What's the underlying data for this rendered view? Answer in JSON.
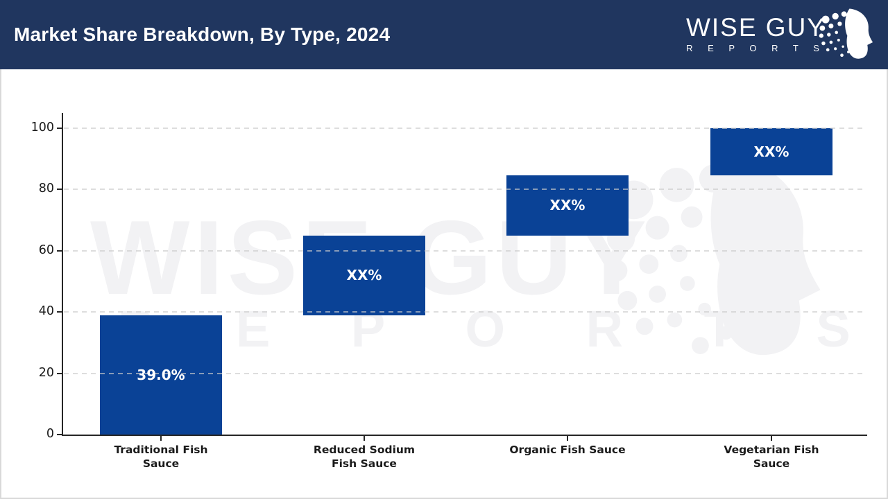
{
  "header": {
    "title": "Market Share Breakdown, By Type, 2024",
    "logo": {
      "line1": "WISE GUY",
      "line2": "R E P O R T S"
    }
  },
  "watermark": {
    "line1": "WISE GUY",
    "line2": "R E P O R T S"
  },
  "colors": {
    "header_background": "#20365f",
    "bar_fill": "#0a4296",
    "bar_label_text": "#ffffff",
    "axis": "#262626",
    "gridline": "#d9d9d9",
    "watermark": "#f2f2f4"
  },
  "chart_data": {
    "type": "bar",
    "subtype": "waterfall",
    "title": "Market Share Breakdown, By Type, 2024",
    "categories": [
      {
        "label": "Traditional Fish Sauce",
        "lines": [
          "Traditional Fish",
          "Sauce"
        ]
      },
      {
        "label": "Reduced Sodium Fish Sauce",
        "lines": [
          "Reduced Sodium",
          "Fish Sauce"
        ]
      },
      {
        "label": "Organic Fish Sauce",
        "lines": [
          "Organic Fish Sauce"
        ]
      },
      {
        "label": "Vegetarian Fish Sauce",
        "lines": [
          "Vegetarian Fish",
          "Sauce"
        ]
      }
    ],
    "segments": [
      {
        "category": "Traditional Fish Sauce",
        "start": 0,
        "end": 39,
        "label": "39.0%",
        "value_shown": "39.0%"
      },
      {
        "category": "Reduced Sodium Fish Sauce",
        "start": 39,
        "end": 65,
        "label": "XX%",
        "value_shown": "XX%"
      },
      {
        "category": "Organic Fish Sauce",
        "start": 65,
        "end": 84.7,
        "label": "XX%",
        "value_shown": "XX%"
      },
      {
        "category": "Vegetarian Fish Sauce",
        "start": 84.7,
        "end": 100,
        "label": "XX%",
        "value_shown": "XX%"
      }
    ],
    "y_ticks": [
      0,
      20,
      40,
      60,
      80,
      100
    ],
    "ylim": [
      0,
      100
    ],
    "xlabel": "",
    "ylabel": "",
    "grid": "horizontal-dashed",
    "legend": "none"
  }
}
